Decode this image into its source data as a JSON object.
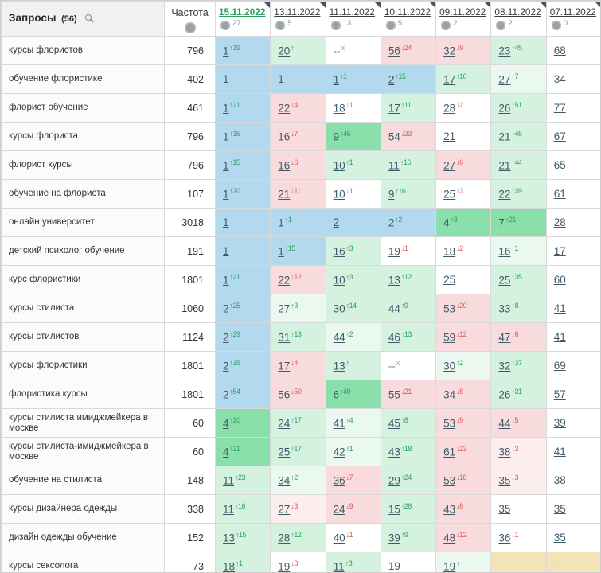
{
  "table": {
    "queries_header": "Запросы",
    "queries_count": "(56)",
    "frequency_header": "Частота",
    "dates": [
      {
        "label": "15.11.2022",
        "active": true,
        "badge": "27"
      },
      {
        "label": "13.11.2022",
        "active": false,
        "badge": "5"
      },
      {
        "label": "11.11.2022",
        "active": false,
        "badge": "13"
      },
      {
        "label": "10.11.2022",
        "active": false,
        "badge": "5"
      },
      {
        "label": "09.11.2022",
        "active": false,
        "badge": "2"
      },
      {
        "label": "08.11.2022",
        "active": false,
        "badge": "2"
      },
      {
        "label": "07.11.2022",
        "active": false,
        "badge": "0"
      }
    ],
    "rows": [
      {
        "query": "курсы флористов",
        "frequency": "796",
        "cells": [
          {
            "v": "1",
            "d": "19",
            "dir": "up",
            "bg": "blue"
          },
          {
            "v": "20",
            "d": "",
            "dir": "new",
            "bg": "lightgreen"
          },
          {
            "v": "--",
            "d": "",
            "dir": "out",
            "bg": "white"
          },
          {
            "v": "56",
            "d": "24",
            "dir": "down",
            "bg": "pink"
          },
          {
            "v": "32",
            "d": "9",
            "dir": "down",
            "bg": "pink"
          },
          {
            "v": "23",
            "d": "45",
            "dir": "up",
            "bg": "lightgreen"
          },
          {
            "v": "68",
            "d": "",
            "dir": "none",
            "bg": "white"
          }
        ]
      },
      {
        "query": "обучение флористике",
        "frequency": "402",
        "cells": [
          {
            "v": "1",
            "d": "",
            "dir": "none",
            "bg": "blue"
          },
          {
            "v": "1",
            "d": "",
            "dir": "none",
            "bg": "blue"
          },
          {
            "v": "1",
            "d": "1",
            "dir": "up",
            "bg": "blue"
          },
          {
            "v": "2",
            "d": "15",
            "dir": "up",
            "bg": "blue"
          },
          {
            "v": "17",
            "d": "10",
            "dir": "up",
            "bg": "lightgreen"
          },
          {
            "v": "27",
            "d": "7",
            "dir": "up",
            "bg": "faintgreen"
          },
          {
            "v": "34",
            "d": "",
            "dir": "none",
            "bg": "white"
          }
        ]
      },
      {
        "query": "флорист обучение",
        "frequency": "461",
        "cells": [
          {
            "v": "1",
            "d": "21",
            "dir": "up",
            "bg": "blue"
          },
          {
            "v": "22",
            "d": "4",
            "dir": "down",
            "bg": "pink"
          },
          {
            "v": "18",
            "d": "1",
            "dir": "down",
            "bg": "white"
          },
          {
            "v": "17",
            "d": "11",
            "dir": "up",
            "bg": "lightgreen"
          },
          {
            "v": "28",
            "d": "2",
            "dir": "down",
            "bg": "white"
          },
          {
            "v": "26",
            "d": "51",
            "dir": "up",
            "bg": "lightgreen"
          },
          {
            "v": "77",
            "d": "",
            "dir": "none",
            "bg": "white"
          }
        ]
      },
      {
        "query": "курсы флориста",
        "frequency": "796",
        "cells": [
          {
            "v": "1",
            "d": "15",
            "dir": "up",
            "bg": "blue"
          },
          {
            "v": "16",
            "d": "7",
            "dir": "down",
            "bg": "pink"
          },
          {
            "v": "9",
            "d": "45",
            "dir": "up",
            "bg": "green"
          },
          {
            "v": "54",
            "d": "33",
            "dir": "down",
            "bg": "pink"
          },
          {
            "v": "21",
            "d": "",
            "dir": "none",
            "bg": "white"
          },
          {
            "v": "21",
            "d": "46",
            "dir": "up",
            "bg": "lightgreen"
          },
          {
            "v": "67",
            "d": "",
            "dir": "none",
            "bg": "white"
          }
        ]
      },
      {
        "query": "флорист курсы",
        "frequency": "796",
        "cells": [
          {
            "v": "1",
            "d": "15",
            "dir": "up",
            "bg": "blue"
          },
          {
            "v": "16",
            "d": "6",
            "dir": "down",
            "bg": "pink"
          },
          {
            "v": "10",
            "d": "1",
            "dir": "up",
            "bg": "lightgreen"
          },
          {
            "v": "11",
            "d": "16",
            "dir": "up",
            "bg": "lightgreen"
          },
          {
            "v": "27",
            "d": "6",
            "dir": "down",
            "bg": "pink"
          },
          {
            "v": "21",
            "d": "44",
            "dir": "up",
            "bg": "lightgreen"
          },
          {
            "v": "65",
            "d": "",
            "dir": "none",
            "bg": "white"
          }
        ]
      },
      {
        "query": "обучение на флориста",
        "frequency": "107",
        "cells": [
          {
            "v": "1",
            "d": "20",
            "dir": "up",
            "bg": "blue"
          },
          {
            "v": "21",
            "d": "11",
            "dir": "down",
            "bg": "pink"
          },
          {
            "v": "10",
            "d": "1",
            "dir": "down",
            "bg": "white"
          },
          {
            "v": "9",
            "d": "16",
            "dir": "up",
            "bg": "lightgreen"
          },
          {
            "v": "25",
            "d": "3",
            "dir": "down",
            "bg": "white"
          },
          {
            "v": "22",
            "d": "39",
            "dir": "up",
            "bg": "lightgreen"
          },
          {
            "v": "61",
            "d": "",
            "dir": "none",
            "bg": "white"
          }
        ]
      },
      {
        "query": "онлайн университет",
        "frequency": "3018",
        "cells": [
          {
            "v": "1",
            "d": "",
            "dir": "none",
            "bg": "blue"
          },
          {
            "v": "1",
            "d": "1",
            "dir": "up",
            "bg": "blue"
          },
          {
            "v": "2",
            "d": "",
            "dir": "none",
            "bg": "blue"
          },
          {
            "v": "2",
            "d": "2",
            "dir": "up",
            "bg": "blue"
          },
          {
            "v": "4",
            "d": "3",
            "dir": "up",
            "bg": "green"
          },
          {
            "v": "7",
            "d": "21",
            "dir": "up",
            "bg": "green"
          },
          {
            "v": "28",
            "d": "",
            "dir": "none",
            "bg": "white"
          }
        ]
      },
      {
        "query": "детский психолог обучение",
        "frequency": "191",
        "cells": [
          {
            "v": "1",
            "d": "",
            "dir": "none",
            "bg": "blue"
          },
          {
            "v": "1",
            "d": "15",
            "dir": "up",
            "bg": "blue"
          },
          {
            "v": "16",
            "d": "3",
            "dir": "up",
            "bg": "lightgreen"
          },
          {
            "v": "19",
            "d": "1",
            "dir": "down",
            "bg": "white"
          },
          {
            "v": "18",
            "d": "2",
            "dir": "down",
            "bg": "white"
          },
          {
            "v": "16",
            "d": "1",
            "dir": "up",
            "bg": "faintgreen"
          },
          {
            "v": "17",
            "d": "",
            "dir": "none",
            "bg": "white"
          }
        ]
      },
      {
        "query": "курс флористики",
        "frequency": "1801",
        "cells": [
          {
            "v": "1",
            "d": "21",
            "dir": "up",
            "bg": "blue"
          },
          {
            "v": "22",
            "d": "12",
            "dir": "down",
            "bg": "pink"
          },
          {
            "v": "10",
            "d": "3",
            "dir": "up",
            "bg": "lightgreen"
          },
          {
            "v": "13",
            "d": "12",
            "dir": "up",
            "bg": "lightgreen"
          },
          {
            "v": "25",
            "d": "",
            "dir": "none",
            "bg": "white"
          },
          {
            "v": "25",
            "d": "35",
            "dir": "up",
            "bg": "lightgreen"
          },
          {
            "v": "60",
            "d": "",
            "dir": "none",
            "bg": "white"
          }
        ]
      },
      {
        "query": "курсы стилиста",
        "frequency": "1060",
        "cells": [
          {
            "v": "2",
            "d": "25",
            "dir": "up",
            "bg": "blue"
          },
          {
            "v": "27",
            "d": "3",
            "dir": "up",
            "bg": "faintgreen"
          },
          {
            "v": "30",
            "d": "14",
            "dir": "up",
            "bg": "lightgreen"
          },
          {
            "v": "44",
            "d": "9",
            "dir": "up",
            "bg": "lightgreen"
          },
          {
            "v": "53",
            "d": "20",
            "dir": "down",
            "bg": "pink"
          },
          {
            "v": "33",
            "d": "8",
            "dir": "up",
            "bg": "lightgreen"
          },
          {
            "v": "41",
            "d": "",
            "dir": "none",
            "bg": "white"
          }
        ]
      },
      {
        "query": "курсы стилистов",
        "frequency": "1124",
        "cells": [
          {
            "v": "2",
            "d": "29",
            "dir": "up",
            "bg": "blue"
          },
          {
            "v": "31",
            "d": "13",
            "dir": "up",
            "bg": "lightgreen"
          },
          {
            "v": "44",
            "d": "2",
            "dir": "up",
            "bg": "faintgreen"
          },
          {
            "v": "46",
            "d": "13",
            "dir": "up",
            "bg": "lightgreen"
          },
          {
            "v": "59",
            "d": "12",
            "dir": "down",
            "bg": "pink"
          },
          {
            "v": "47",
            "d": "6",
            "dir": "down",
            "bg": "pink"
          },
          {
            "v": "41",
            "d": "",
            "dir": "none",
            "bg": "white"
          }
        ]
      },
      {
        "query": "курсы флористики",
        "frequency": "1801",
        "cells": [
          {
            "v": "2",
            "d": "15",
            "dir": "up",
            "bg": "blue"
          },
          {
            "v": "17",
            "d": "4",
            "dir": "down",
            "bg": "pink"
          },
          {
            "v": "13",
            "d": "",
            "dir": "new",
            "bg": "lightgreen"
          },
          {
            "v": "--",
            "d": "",
            "dir": "out",
            "bg": "white"
          },
          {
            "v": "30",
            "d": "2",
            "dir": "up",
            "bg": "faintgreen"
          },
          {
            "v": "32",
            "d": "37",
            "dir": "up",
            "bg": "lightgreen"
          },
          {
            "v": "69",
            "d": "",
            "dir": "none",
            "bg": "white"
          }
        ]
      },
      {
        "query": "флористика курсы",
        "frequency": "1801",
        "cells": [
          {
            "v": "2",
            "d": "54",
            "dir": "up",
            "bg": "blue"
          },
          {
            "v": "56",
            "d": "50",
            "dir": "down",
            "bg": "pink"
          },
          {
            "v": "6",
            "d": "49",
            "dir": "up",
            "bg": "green"
          },
          {
            "v": "55",
            "d": "21",
            "dir": "down",
            "bg": "pink"
          },
          {
            "v": "34",
            "d": "8",
            "dir": "down",
            "bg": "pink"
          },
          {
            "v": "26",
            "d": "31",
            "dir": "up",
            "bg": "lightgreen"
          },
          {
            "v": "57",
            "d": "",
            "dir": "none",
            "bg": "white"
          }
        ]
      },
      {
        "query": "курсы стилиста имиджмейкера в москве",
        "frequency": "60",
        "cells": [
          {
            "v": "4",
            "d": "20",
            "dir": "up",
            "bg": "green"
          },
          {
            "v": "24",
            "d": "17",
            "dir": "up",
            "bg": "lightgreen"
          },
          {
            "v": "41",
            "d": "4",
            "dir": "up",
            "bg": "faintgreen"
          },
          {
            "v": "45",
            "d": "8",
            "dir": "up",
            "bg": "lightgreen"
          },
          {
            "v": "53",
            "d": "9",
            "dir": "down",
            "bg": "pink"
          },
          {
            "v": "44",
            "d": "5",
            "dir": "down",
            "bg": "pink"
          },
          {
            "v": "39",
            "d": "",
            "dir": "none",
            "bg": "white"
          }
        ]
      },
      {
        "query": "курсы стилиста-имиджмейкера в москве",
        "frequency": "60",
        "cells": [
          {
            "v": "4",
            "d": "21",
            "dir": "up",
            "bg": "green"
          },
          {
            "v": "25",
            "d": "17",
            "dir": "up",
            "bg": "lightgreen"
          },
          {
            "v": "42",
            "d": "1",
            "dir": "up",
            "bg": "faintgreen"
          },
          {
            "v": "43",
            "d": "18",
            "dir": "up",
            "bg": "lightgreen"
          },
          {
            "v": "61",
            "d": "23",
            "dir": "down",
            "bg": "pink"
          },
          {
            "v": "38",
            "d": "3",
            "dir": "down",
            "bg": "faintpink"
          },
          {
            "v": "41",
            "d": "",
            "dir": "none",
            "bg": "white"
          }
        ]
      },
      {
        "query": "обучение на стилиста",
        "frequency": "148",
        "cells": [
          {
            "v": "11",
            "d": "23",
            "dir": "up",
            "bg": "lightgreen"
          },
          {
            "v": "34",
            "d": "2",
            "dir": "up",
            "bg": "faintgreen"
          },
          {
            "v": "36",
            "d": "7",
            "dir": "down",
            "bg": "pink"
          },
          {
            "v": "29",
            "d": "24",
            "dir": "up",
            "bg": "lightgreen"
          },
          {
            "v": "53",
            "d": "18",
            "dir": "down",
            "bg": "pink"
          },
          {
            "v": "35",
            "d": "3",
            "dir": "down",
            "bg": "faintpink"
          },
          {
            "v": "38",
            "d": "",
            "dir": "none",
            "bg": "white"
          }
        ]
      },
      {
        "query": "курсы дизайнера одежды",
        "frequency": "338",
        "cells": [
          {
            "v": "11",
            "d": "16",
            "dir": "up",
            "bg": "lightgreen"
          },
          {
            "v": "27",
            "d": "3",
            "dir": "down",
            "bg": "faintpink"
          },
          {
            "v": "24",
            "d": "9",
            "dir": "down",
            "bg": "pink"
          },
          {
            "v": "15",
            "d": "28",
            "dir": "up",
            "bg": "lightgreen"
          },
          {
            "v": "43",
            "d": "8",
            "dir": "down",
            "bg": "pink"
          },
          {
            "v": "35",
            "d": "",
            "dir": "none",
            "bg": "white"
          },
          {
            "v": "35",
            "d": "",
            "dir": "none",
            "bg": "white"
          }
        ]
      },
      {
        "query": "дизайн одежды обучение",
        "frequency": "152",
        "cells": [
          {
            "v": "13",
            "d": "15",
            "dir": "up",
            "bg": "lightgreen"
          },
          {
            "v": "28",
            "d": "12",
            "dir": "up",
            "bg": "lightgreen"
          },
          {
            "v": "40",
            "d": "1",
            "dir": "down",
            "bg": "white"
          },
          {
            "v": "39",
            "d": "9",
            "dir": "up",
            "bg": "lightgreen"
          },
          {
            "v": "48",
            "d": "12",
            "dir": "down",
            "bg": "pink"
          },
          {
            "v": "36",
            "d": "1",
            "dir": "down",
            "bg": "white"
          },
          {
            "v": "35",
            "d": "",
            "dir": "none",
            "bg": "white"
          }
        ]
      },
      {
        "query": "курсы сексолога",
        "frequency": "73",
        "cells": [
          {
            "v": "18",
            "d": "1",
            "dir": "up",
            "bg": "lightgreen"
          },
          {
            "v": "19",
            "d": "8",
            "dir": "down",
            "bg": "white"
          },
          {
            "v": "11",
            "d": "8",
            "dir": "up",
            "bg": "lightgreen"
          },
          {
            "v": "19",
            "d": "",
            "dir": "none",
            "bg": "white"
          },
          {
            "v": "19",
            "d": "",
            "dir": "new",
            "bg": "faintgreen"
          },
          {
            "v": "--",
            "d": "",
            "dir": "none",
            "bg": "tan"
          },
          {
            "v": "--",
            "d": "",
            "dir": "none",
            "bg": "tan"
          }
        ]
      }
    ]
  }
}
